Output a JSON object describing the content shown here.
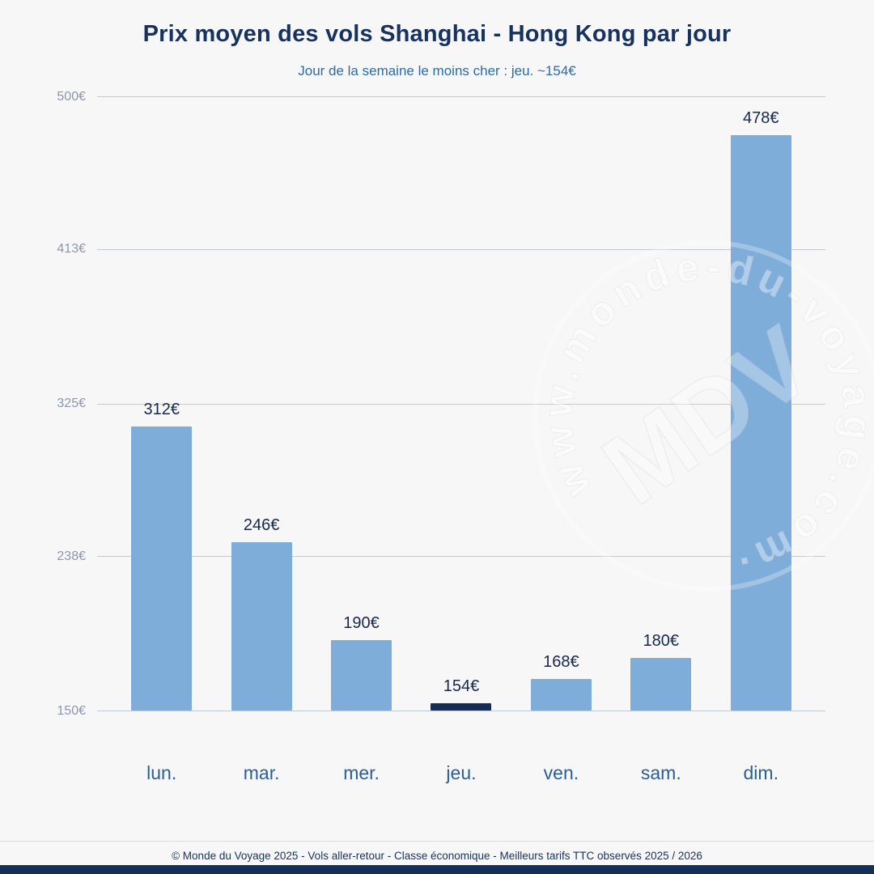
{
  "header": {
    "title": "Prix moyen des vols Shanghai - Hong Kong par jour",
    "subtitle": "Jour de la semaine le moins cher : jeu. ~154€"
  },
  "chart_data": {
    "type": "bar",
    "categories": [
      "lun.",
      "mar.",
      "mer.",
      "jeu.",
      "ven.",
      "sam.",
      "dim."
    ],
    "values": [
      312,
      246,
      190,
      154,
      168,
      180,
      478
    ],
    "value_labels": [
      "312€",
      "246€",
      "190€",
      "154€",
      "168€",
      "180€",
      "478€"
    ],
    "highlight_index": 3,
    "title": "Prix moyen des vols Shanghai - Hong Kong par jour",
    "xlabel": "",
    "ylabel": "",
    "ylim": [
      150,
      500
    ],
    "yticks": [
      500,
      413,
      325,
      238,
      150
    ],
    "ytick_labels": [
      "500€",
      "413€",
      "325€",
      "238€",
      "150€"
    ],
    "grid": true,
    "legend": "none",
    "bar_color": "#7fadda",
    "highlight_color": "#152c54"
  },
  "watermark": {
    "circle_text": "www.monde-du-voyage.com·",
    "center_text": "MDV"
  },
  "footer": {
    "text": "© Monde du Voyage 2025 - Vols aller-retour - Classe économique - Meilleurs tarifs TTC observés 2025 / 2026"
  }
}
